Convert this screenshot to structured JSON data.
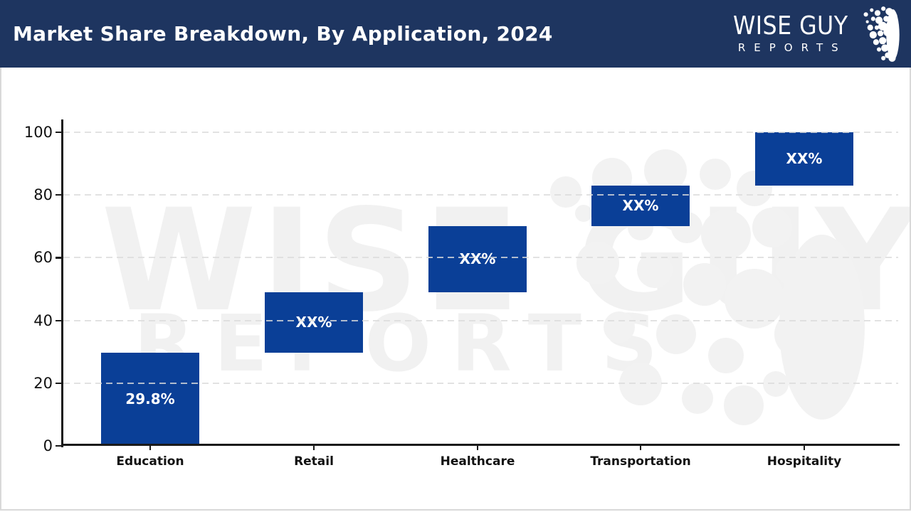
{
  "header": {
    "title": "Market Share Breakdown, By Application, 2024",
    "bg_color": "#1e3560",
    "logo": {
      "line1": "WISE GUY",
      "line2": "REPORTS"
    }
  },
  "watermark": {
    "line1": "WISE GUY",
    "line2": "REPORTS"
  },
  "chart_data": {
    "type": "bar",
    "subtype": "waterfall",
    "title": "Market Share Breakdown, By Application, 2024",
    "categories": [
      "Education",
      "Retail",
      "Healthcare",
      "Transportation",
      "Hospitality"
    ],
    "bars": [
      {
        "category": "Education",
        "start": 0,
        "end": 29.8,
        "value": 29.8,
        "label": "29.8%"
      },
      {
        "category": "Retail",
        "start": 29.8,
        "end": 49.0,
        "value": 19.2,
        "label": "XX%"
      },
      {
        "category": "Healthcare",
        "start": 49.0,
        "end": 70.1,
        "value": 21.1,
        "label": "XX%"
      },
      {
        "category": "Transportation",
        "start": 70.1,
        "end": 83.0,
        "value": 12.9,
        "label": "XX%"
      },
      {
        "category": "Hospitality",
        "start": 83.0,
        "end": 100.0,
        "value": 17.0,
        "label": "XX%"
      }
    ],
    "yticks": [
      0,
      20,
      40,
      60,
      80,
      100
    ],
    "ylim": [
      0,
      104
    ],
    "xlabel": "",
    "ylabel": "",
    "grid": "horizontal-dashed",
    "legend": "none",
    "bar_color": "#0a3f97",
    "bar_label_color": "#ffffff",
    "axis_color": "#1a1a1a",
    "grid_color": "#dcdcdc"
  }
}
